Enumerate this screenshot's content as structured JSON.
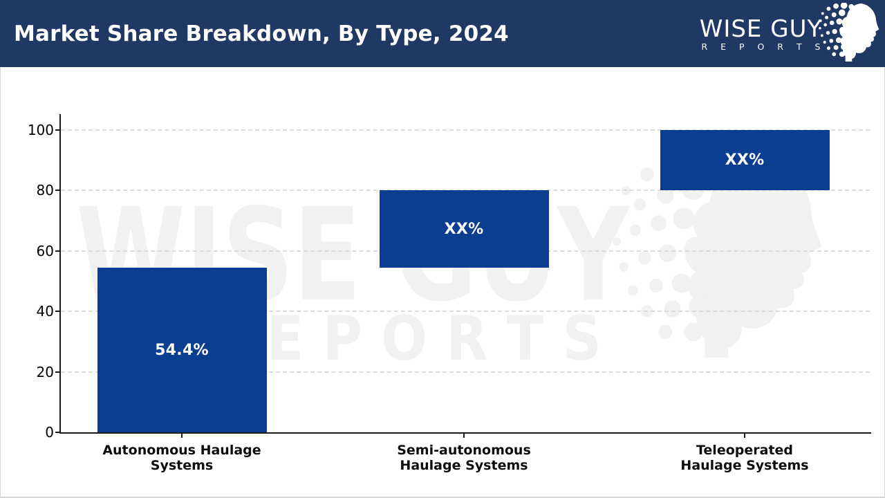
{
  "header": {
    "title": "Market Share Breakdown, By Type, 2024",
    "logo": {
      "wise_guy": "WISE GUY",
      "reports": "R E P O R T S"
    }
  },
  "watermark": {
    "wise_guy": "WISE GUY",
    "reports": "R E P O R T S"
  },
  "colors": {
    "header_bg": "#203864",
    "bar": "#0b3e90",
    "bar_label": "#ffffff",
    "axis": "#1a1a1a",
    "grid": "#dcdcdc",
    "watermark": "#f1f1f2",
    "page_border": "#d7d7d7"
  },
  "chart_data": {
    "type": "bar",
    "subtype": "floating-waterfall",
    "title": "Market Share Breakdown, By Type, 2024",
    "categories": [
      "Autonomous Haulage\nSystems",
      "Semi-autonomous\nHaulage Systems",
      "Teleoperated\nHaulage Systems"
    ],
    "bars": [
      {
        "category": "Autonomous Haulage Systems",
        "base": 0,
        "top": 54.4,
        "label": "54.4%"
      },
      {
        "category": "Semi-autonomous Haulage Systems",
        "base": 54.4,
        "top": 80,
        "label": "XX%"
      },
      {
        "category": "Teleoperated Haulage Systems",
        "base": 80,
        "top": 100,
        "label": "XX%"
      }
    ],
    "xlabel": "",
    "ylabel": "",
    "ylim": [
      0,
      100
    ],
    "yticks": [
      0,
      20,
      40,
      60,
      80,
      100
    ],
    "grid": {
      "horizontal": true,
      "style": "dashed"
    },
    "legend": "none",
    "bar_color": "#0b3e90",
    "bar_label_color": "#ffffff"
  }
}
